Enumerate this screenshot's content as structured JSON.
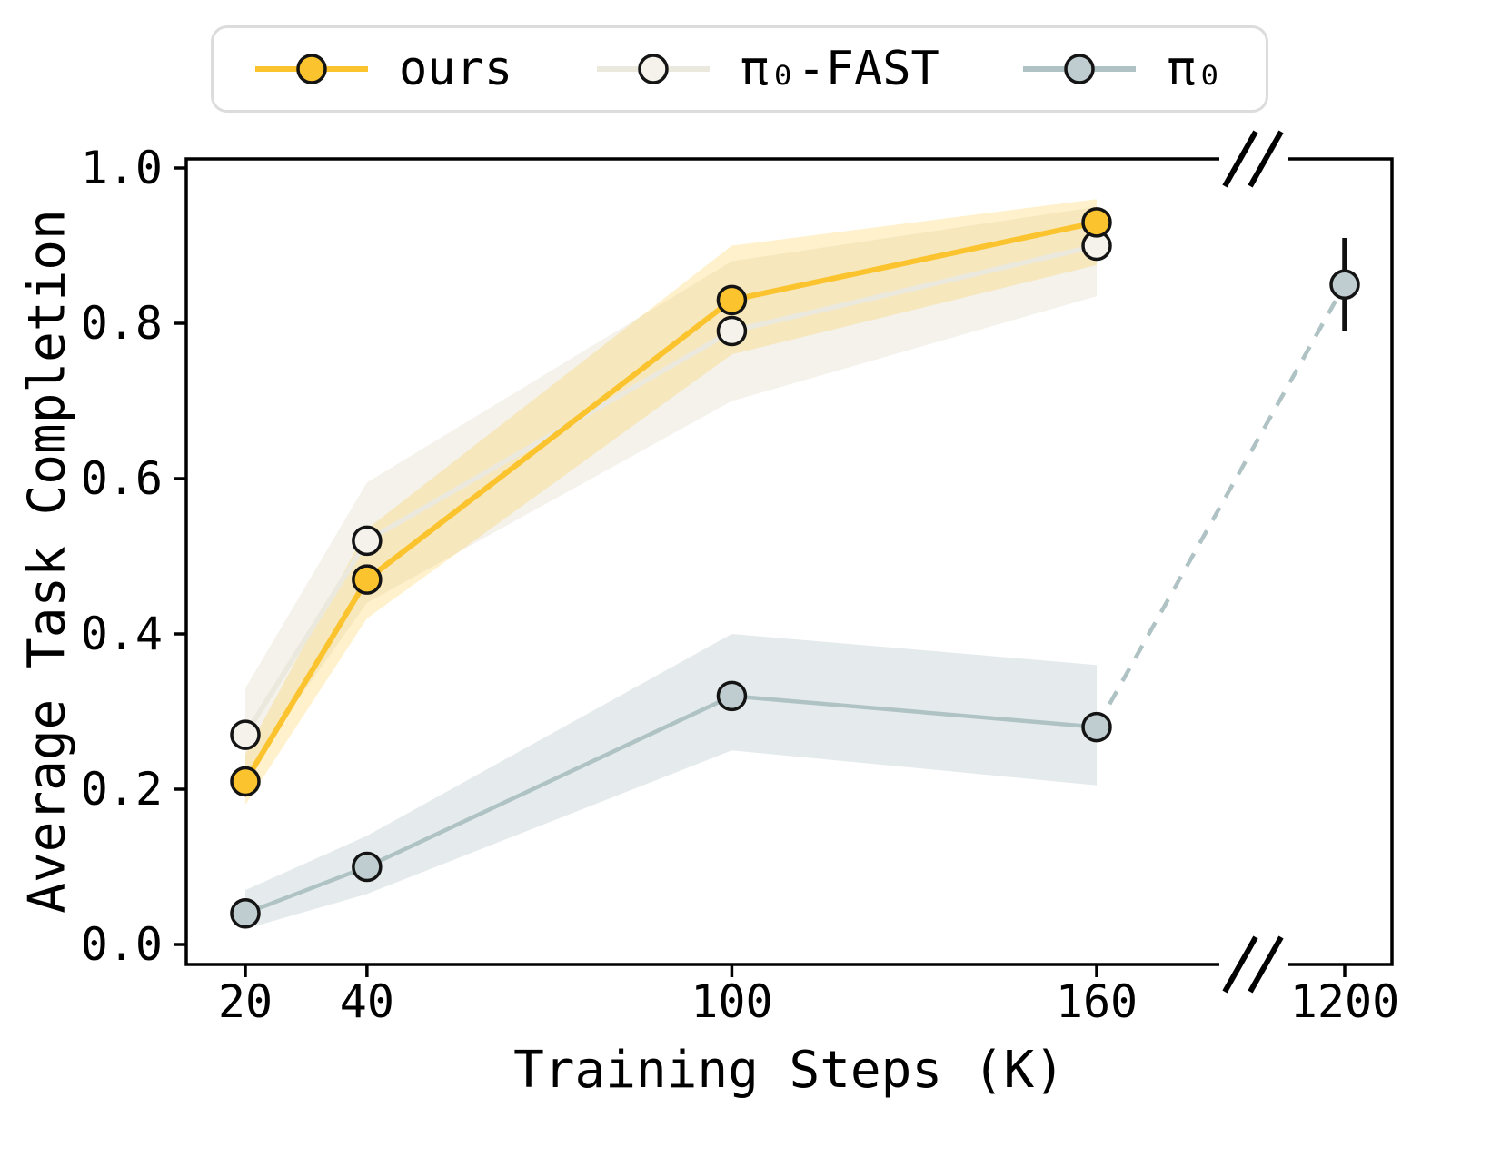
{
  "figure": {
    "background": "#ffffff"
  },
  "legend": {
    "labels": [
      "ours",
      "π₀-FAST",
      "π₀"
    ]
  },
  "chart_data": {
    "type": "line",
    "title": "",
    "xlabel": "Training Steps (K)",
    "ylabel": "Average Task Completion",
    "x_ticks": [
      20,
      40,
      100,
      160,
      1200
    ],
    "x_tick_labels": [
      "20",
      "40",
      "100",
      "160",
      "1200"
    ],
    "y_ticks": [
      0,
      0.2,
      0.4,
      0.6,
      0.8,
      1.0
    ],
    "y_tick_labels": [
      "0.0",
      "0.2",
      "0.4",
      "0.6",
      "0.8",
      "1.0"
    ],
    "ylim": [
      0,
      1
    ],
    "grid": false,
    "legend_position": "top",
    "axis_color": "#000000",
    "x_axis_break_between": [
      160,
      1200
    ],
    "series": [
      {
        "name": "ours",
        "color": "#FBC42E",
        "marker_fill": "#FBC42E",
        "band_color": "rgba(250,198,53,0.25)",
        "style": "solid",
        "x": [
          20,
          40,
          100,
          160
        ],
        "y": [
          0.21,
          0.47,
          0.83,
          0.93
        ],
        "band_lower": [
          0.18,
          0.42,
          0.76,
          0.875
        ],
        "band_upper": [
          0.245,
          0.535,
          0.9,
          0.96
        ]
      },
      {
        "name": "π₀-FAST",
        "color": "#EBE8DD",
        "marker_fill": "#F4F2EA",
        "band_color": "rgba(233,229,215,0.5)",
        "style": "solid",
        "x": [
          20,
          40,
          100,
          160
        ],
        "y": [
          0.27,
          0.52,
          0.79,
          0.9
        ],
        "band_lower": [
          0.22,
          0.44,
          0.7,
          0.835
        ],
        "band_upper": [
          0.33,
          0.595,
          0.88,
          0.95
        ]
      },
      {
        "name": "π₀",
        "color": "#AFC2C4",
        "marker_fill": "#C0CDD0",
        "band_color": "rgba(175,194,196,0.32)",
        "style": "solid",
        "x": [
          20,
          40,
          100,
          160
        ],
        "y": [
          0.04,
          0.1,
          0.32,
          0.28
        ],
        "band_lower": [
          0.02,
          0.065,
          0.25,
          0.205
        ],
        "band_upper": [
          0.07,
          0.14,
          0.4,
          0.36
        ],
        "extension": {
          "x": 1200,
          "y": 0.85,
          "error": 0.06,
          "style": "dashed"
        }
      }
    ]
  }
}
